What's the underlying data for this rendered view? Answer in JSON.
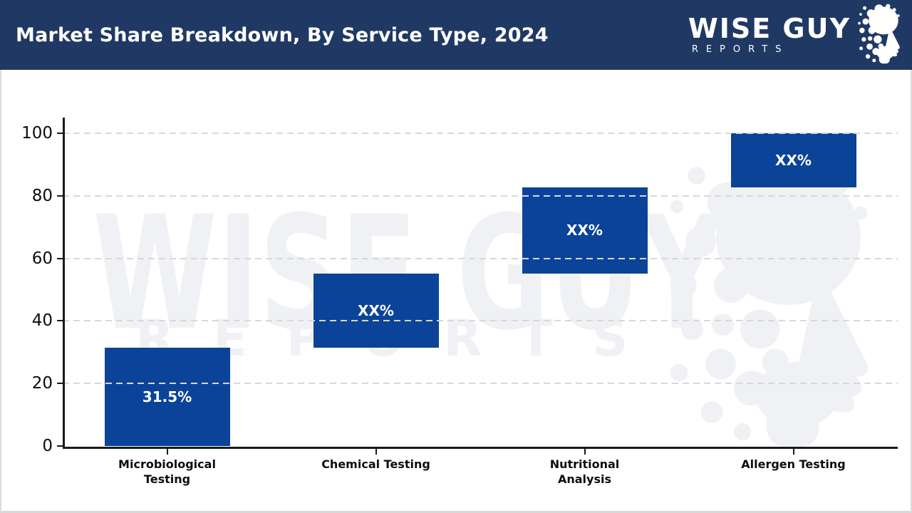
{
  "header": {
    "title": "Market Share Breakdown, By Service Type, 2024",
    "brand": {
      "name": "WISE GUY",
      "subtitle": "REPORTS"
    },
    "colors": {
      "header_bg": "#203864",
      "text": "#ffffff"
    }
  },
  "watermark": {
    "wordmark": "WISE GUY",
    "subtitle": "REPORTS"
  },
  "chart_data": {
    "type": "bar",
    "subtype": "waterfall",
    "title": "Market Share Breakdown, By Service Type, 2024",
    "categories": [
      "Microbiological Testing",
      "Chemical Testing",
      "Nutritional Analysis",
      "Allergen Testing"
    ],
    "category_lines": [
      [
        "Microbiological",
        "Testing"
      ],
      [
        "Chemical Testing"
      ],
      [
        "Nutritional",
        "Analysis"
      ],
      [
        "Allergen Testing"
      ]
    ],
    "segments": [
      {
        "category": "Microbiological Testing",
        "start": 0,
        "end": 31.5,
        "label": "31.5%"
      },
      {
        "category": "Chemical Testing",
        "start": 31.5,
        "end": 55.2,
        "label": "XX%"
      },
      {
        "category": "Nutritional Analysis",
        "start": 55.2,
        "end": 82.8,
        "label": "XX%"
      },
      {
        "category": "Allergen Testing",
        "start": 82.8,
        "end": 100,
        "label": "XX%"
      }
    ],
    "y_ticks": [
      0,
      20,
      40,
      60,
      80,
      100
    ],
    "ylim": [
      0,
      105.5
    ],
    "xlabel": "",
    "ylabel": "",
    "legend": "none",
    "grid": "horizontal-dashed",
    "colors": {
      "bar": "#0b4398",
      "bar_label": "#ffffff",
      "axis": "#1a1a1a",
      "gridline": "#d8d8d8",
      "tick_label": "#0d0d0d",
      "watermark": "#f0f1f4"
    }
  }
}
